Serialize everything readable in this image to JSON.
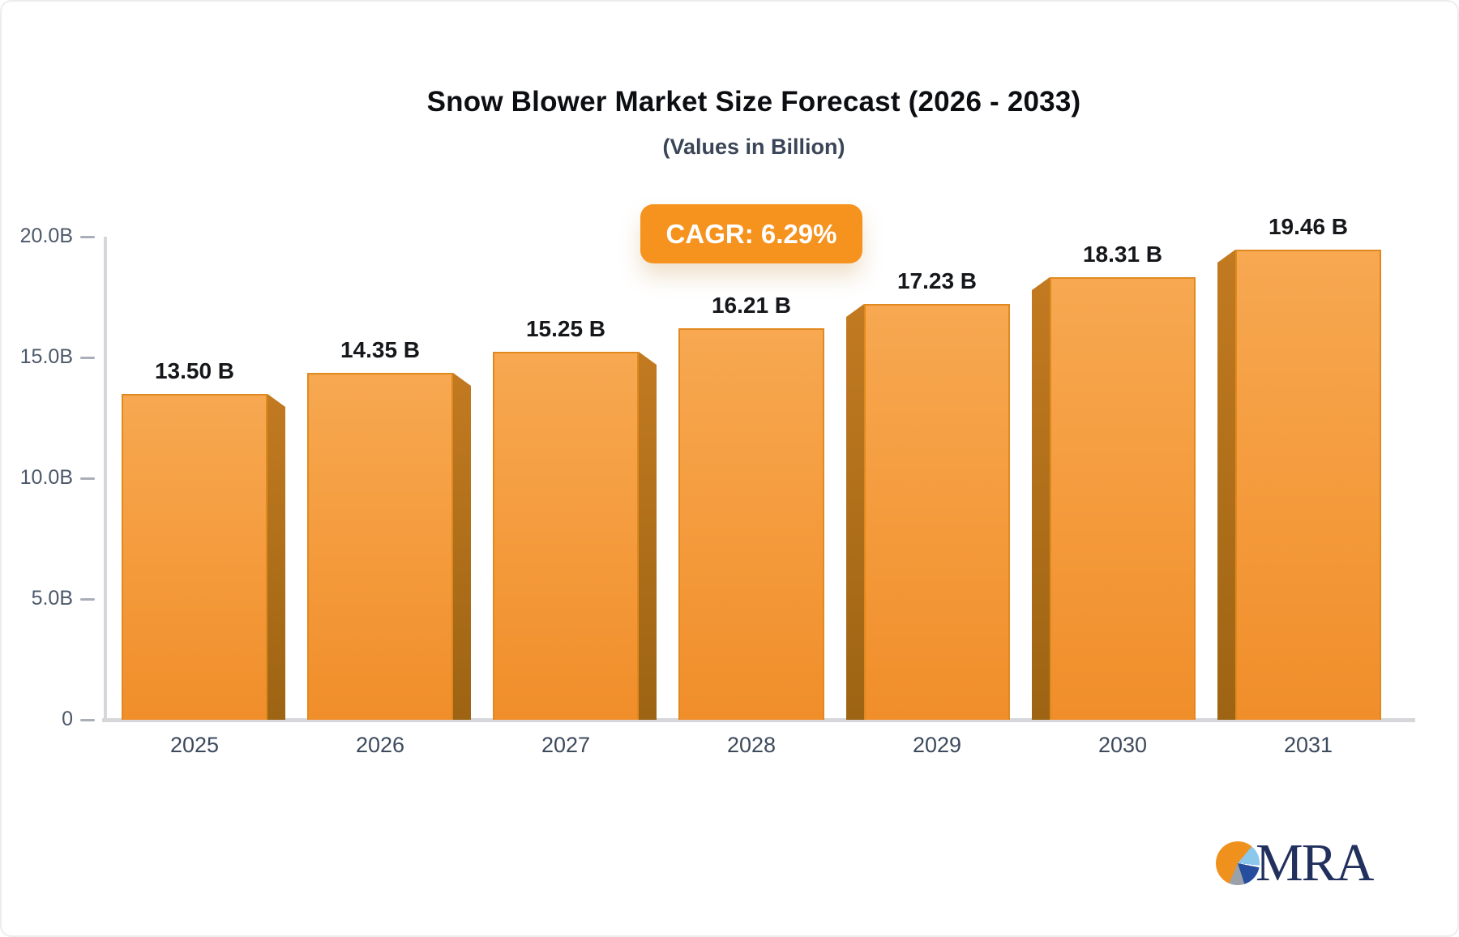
{
  "header": {
    "title": "Snow Blower Market Size Forecast (2026 - 2033)",
    "subtitle": "(Values in Billion)"
  },
  "badge": {
    "label": "CAGR: 6.29%",
    "color": "#f6921e",
    "text_color": "#ffffff"
  },
  "chart_data": {
    "type": "bar",
    "title": "Snow Blower Market Size Forecast (2026 - 2033)",
    "subtitle": "(Values in Billion)",
    "units": "Billion",
    "cagr": "6.29%",
    "categories": [
      "2025",
      "2026",
      "2027",
      "2028",
      "2029",
      "2030",
      "2031"
    ],
    "values": [
      13.5,
      14.35,
      15.25,
      16.21,
      17.23,
      18.31,
      19.46
    ],
    "value_labels": [
      "13.50 B",
      "14.35 B",
      "15.25 B",
      "16.21 B",
      "17.23 B",
      "18.31 B",
      "19.46 B"
    ],
    "ylim": [
      0,
      20
    ],
    "yticks": [
      {
        "label": "20.0B",
        "value": 20
      },
      {
        "label": "15.0B",
        "value": 15
      },
      {
        "label": "10.0B",
        "value": 10
      },
      {
        "label": "5.0B",
        "value": 5
      },
      {
        "label": "0",
        "value": 0
      }
    ],
    "grid": false,
    "legend": false,
    "bar_colors": {
      "face_top": "#f7a851",
      "face_bottom": "#f08e2a",
      "side_top": "#c27a21",
      "side_bottom": "#9d6413",
      "outline": "#e0891f"
    },
    "axis_color": "#d6d7da"
  },
  "logo": {
    "text": "MRA",
    "pie_colors": [
      "#f0911e",
      "#8cc8ec",
      "#264e9c",
      "#9aa1ab"
    ],
    "text_color": "#22305e"
  }
}
